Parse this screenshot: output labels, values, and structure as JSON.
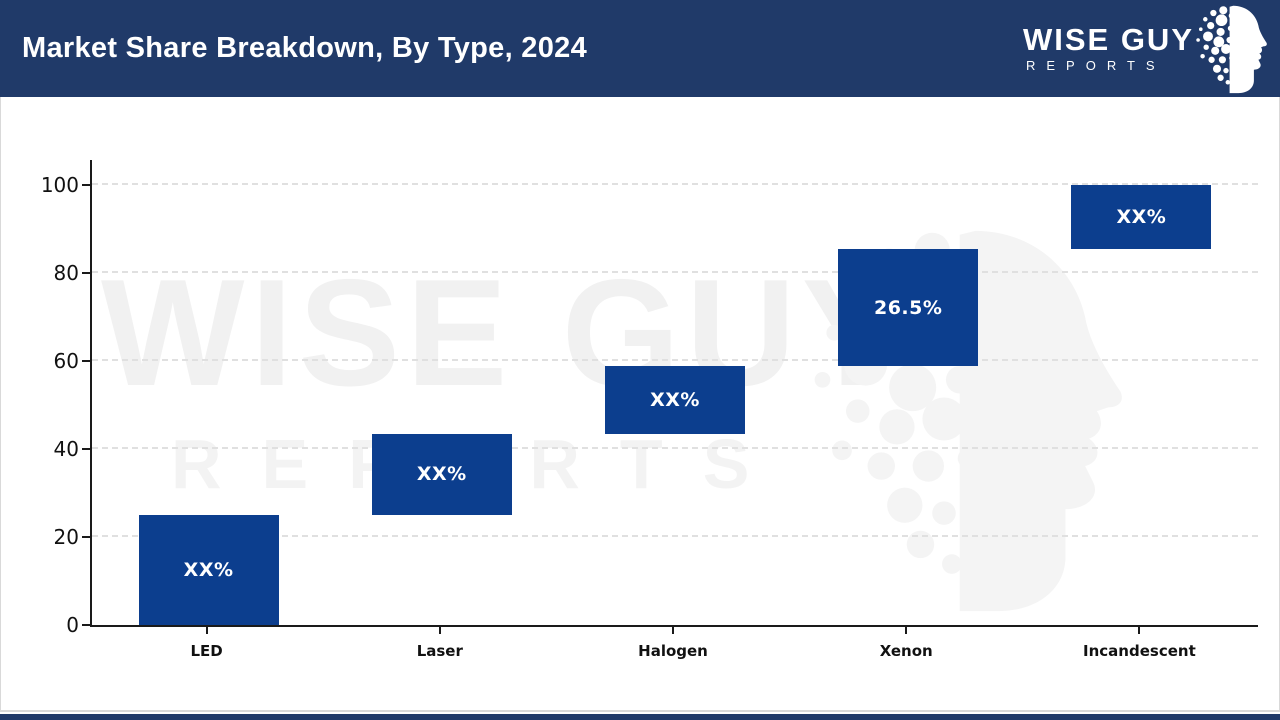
{
  "header": {
    "title": "Market Share Breakdown, By Type, 2024",
    "logo": {
      "name": "WISE GUY",
      "tagline": "REPORTS",
      "icon": "dotted-head-profile-icon"
    }
  },
  "watermark": {
    "line1": "WISE GUY",
    "line2": "REPORTS",
    "icon": "dotted-head-profile-icon"
  },
  "colors": {
    "header_background": "#203a69",
    "footer_background": "#203a69",
    "bar_blue": "#0c3e8e",
    "bar_label": "#ffffff",
    "axis": "#1a1a1a",
    "gridline": "#e0e0e0"
  },
  "chart_data": {
    "type": "bar",
    "subtype": "waterfall",
    "title": "Market Share Breakdown, By Type, 2024",
    "categories": [
      "LED",
      "Laser",
      "Halogen",
      "Xenon",
      "Incandescent"
    ],
    "segments": [
      {
        "category": "LED",
        "start": 0,
        "end": 25.0,
        "value_label": "XX%"
      },
      {
        "category": "Laser",
        "start": 25.0,
        "end": 43.5,
        "value_label": "XX%"
      },
      {
        "category": "Halogen",
        "start": 43.5,
        "end": 58.9,
        "value_label": "XX%"
      },
      {
        "category": "Xenon",
        "start": 58.9,
        "end": 85.4,
        "value_label": "26.5%"
      },
      {
        "category": "Incandescent",
        "start": 85.4,
        "end": 100,
        "value_label": "XX%"
      }
    ],
    "yticks": [
      0,
      20,
      40,
      60,
      80,
      100
    ],
    "ylim": [
      0,
      105.7
    ],
    "xlabel": "",
    "ylabel": "",
    "legend": "none",
    "grid": "horizontal-dashed",
    "bar_color": "#0c3e8e",
    "bar_label_color": "#ffffff",
    "unit": "percent"
  }
}
